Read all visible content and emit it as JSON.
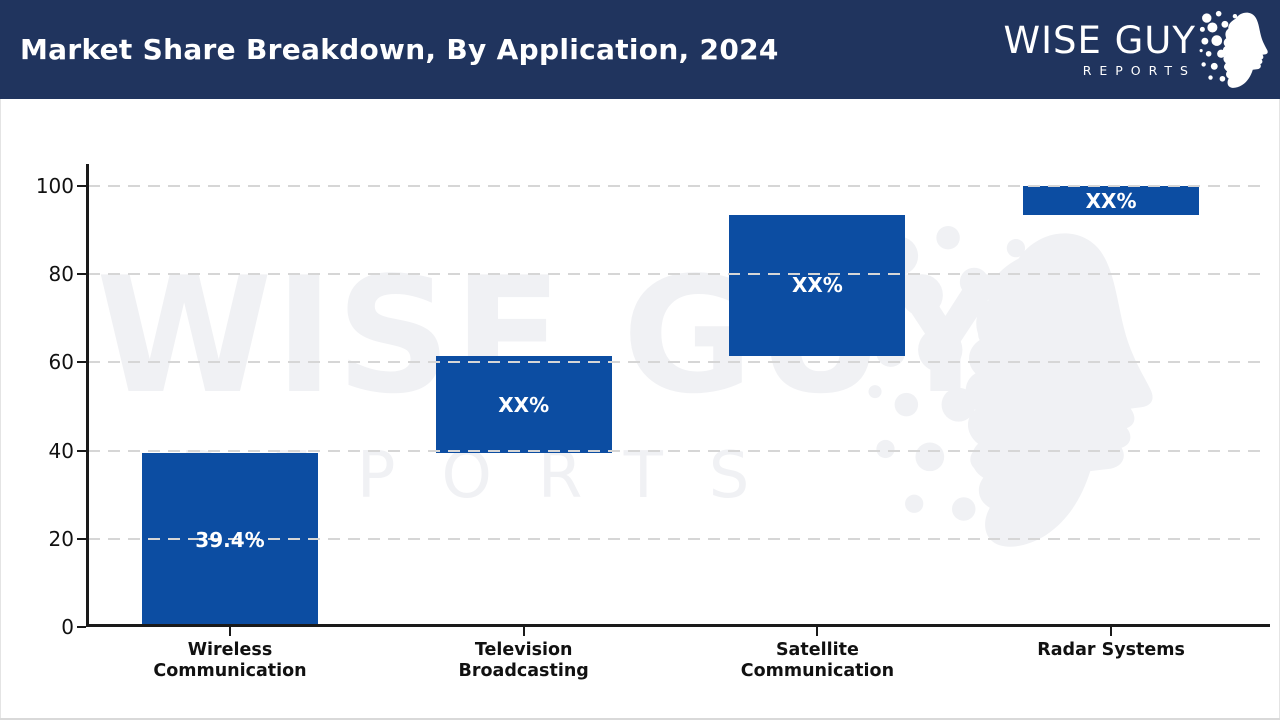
{
  "header": {
    "title": "Market Share Breakdown, By Application, 2024",
    "bg_color": "#20345E",
    "logo": {
      "wordmark": "WISE GUY",
      "subtext": "REPORTS"
    }
  },
  "watermark": {
    "wordmark": "WISE GUY",
    "subtext": "REPORTS"
  },
  "chart_data": {
    "type": "bar",
    "variant": "waterfall-breakdown",
    "title": "Market Share Breakdown, By Application, 2024",
    "categories": [
      "Wireless Communication",
      "Television Broadcasting",
      "Satellite Communication",
      "Radar Systems"
    ],
    "category_lines": [
      [
        "Wireless",
        "Communication"
      ],
      [
        "Television",
        "Broadcasting"
      ],
      [
        "Satellite",
        "Communication"
      ],
      [
        "Radar Systems"
      ]
    ],
    "segments": [
      {
        "category": "Wireless Communication",
        "start": 0,
        "end": 39.4,
        "label": "39.4%"
      },
      {
        "category": "Television Broadcasting",
        "start": 39.4,
        "end": 61.5,
        "label": "XX%"
      },
      {
        "category": "Satellite Communication",
        "start": 61.5,
        "end": 93.4,
        "label": "XX%"
      },
      {
        "category": "Radar Systems",
        "start": 93.4,
        "end": 100,
        "label": "XX%"
      }
    ],
    "values_est": [
      39.4,
      22.1,
      31.9,
      6.6
    ],
    "ylim": [
      0,
      100
    ],
    "yticks": [
      0,
      20,
      40,
      60,
      80,
      100
    ],
    "grid": "horizontal-dashed",
    "legend": "none",
    "bar_color": "#0C4DA2",
    "bar_label_color": "#FFFFFF",
    "axis_color": "#1A1A1A"
  }
}
